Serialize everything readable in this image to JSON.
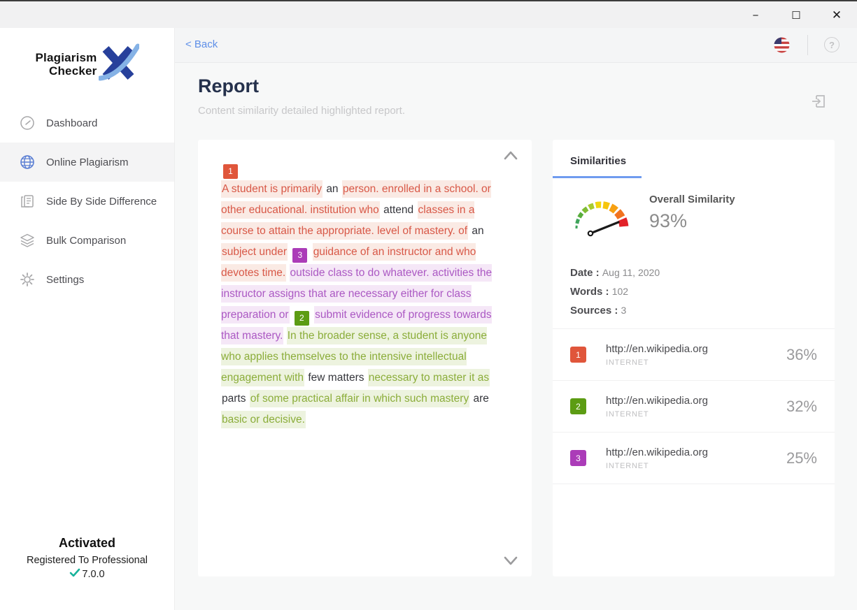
{
  "window": {
    "controls": {
      "minimize": "−",
      "maximize": "☐",
      "close": "✕"
    }
  },
  "sidebar": {
    "logo": {
      "line1": "Plagiarism",
      "line2": "Checker",
      "mark": "X"
    },
    "items": [
      {
        "label": "Dashboard",
        "icon": "dashboard-icon",
        "active": false
      },
      {
        "label": "Online Plagiarism",
        "icon": "globe-icon",
        "active": true
      },
      {
        "label": "Side By Side Difference",
        "icon": "side-by-side-icon",
        "active": false
      },
      {
        "label": "Bulk Comparison",
        "icon": "layers-icon",
        "active": false
      },
      {
        "label": "Settings",
        "icon": "gear-icon",
        "active": false
      }
    ],
    "activation": {
      "status": "Activated",
      "registered": "Registered To Professional",
      "version": "7.0.0"
    }
  },
  "topbar": {
    "back_label": "< Back"
  },
  "page": {
    "title": "Report",
    "subtitle": "Content similarity detailed highlighted report."
  },
  "document": {
    "segments": [
      {
        "type": "badge",
        "source": "1",
        "break_after": true
      },
      {
        "type": "s1",
        "text": "A student is primarily"
      },
      {
        "type": "plain",
        "text": "an"
      },
      {
        "type": "s1",
        "text": "person. enrolled in a school. or other educational. institution who"
      },
      {
        "type": "plain",
        "text": "attend"
      },
      {
        "type": "s1",
        "text": "classes in a course to attain the appropriate. level of mastery. of"
      },
      {
        "type": "plain",
        "text": "an"
      },
      {
        "type": "s1",
        "text": "subject under"
      },
      {
        "type": "badge",
        "source": "3"
      },
      {
        "type": "s1",
        "text": "guidance of an instructor and who devotes time."
      },
      {
        "type": "s3",
        "text": "outside class to do whatever. activities the instructor assigns that are necessary either for class preparation or"
      },
      {
        "type": "badge",
        "source": "2"
      },
      {
        "type": "s3",
        "text": "submit evidence of progress towards that mastery."
      },
      {
        "type": "s2",
        "text": "In the broader sense, a student is anyone who applies themselves to the intensive intellectual engagement with"
      },
      {
        "type": "plain",
        "text": "few matters"
      },
      {
        "type": "s2",
        "text": "necessary to master it as"
      },
      {
        "type": "plain",
        "text": "parts"
      },
      {
        "type": "s2",
        "text": "of some practical affair in which such mastery"
      },
      {
        "type": "plain",
        "text": "are"
      },
      {
        "type": "s2",
        "text": "basic or decisive."
      }
    ]
  },
  "similarities": {
    "tab_label": "Similarities",
    "overall_label": "Overall Similarity",
    "overall_value": "93%",
    "meta": [
      {
        "label": "Date :",
        "value": "Aug 11, 2020"
      },
      {
        "label": "Words :",
        "value": "102"
      },
      {
        "label": "Sources :",
        "value": "3"
      }
    ],
    "sources": [
      {
        "id": "1",
        "url": "http://en.wikipedia.org",
        "type": "INTERNET",
        "percent": "36%"
      },
      {
        "id": "2",
        "url": "http://en.wikipedia.org",
        "type": "INTERNET",
        "percent": "32%"
      },
      {
        "id": "3",
        "url": "http://en.wikipedia.org",
        "type": "INTERNET",
        "percent": "25%"
      }
    ]
  },
  "colors": {
    "source1": "#e0563b",
    "source2": "#5c9c13",
    "source3": "#ab3cb8",
    "hl1_text": "#d85847",
    "hl1_bg": "#faeae4",
    "hl2_text": "#8bad3a",
    "hl2_bg": "#edf3df",
    "hl3_text": "#ab58c3",
    "hl3_bg": "#f5e7f7",
    "tab_underline": "#6f9bef",
    "back_link": "#5e8fe8",
    "version_check": "#17b29a"
  }
}
